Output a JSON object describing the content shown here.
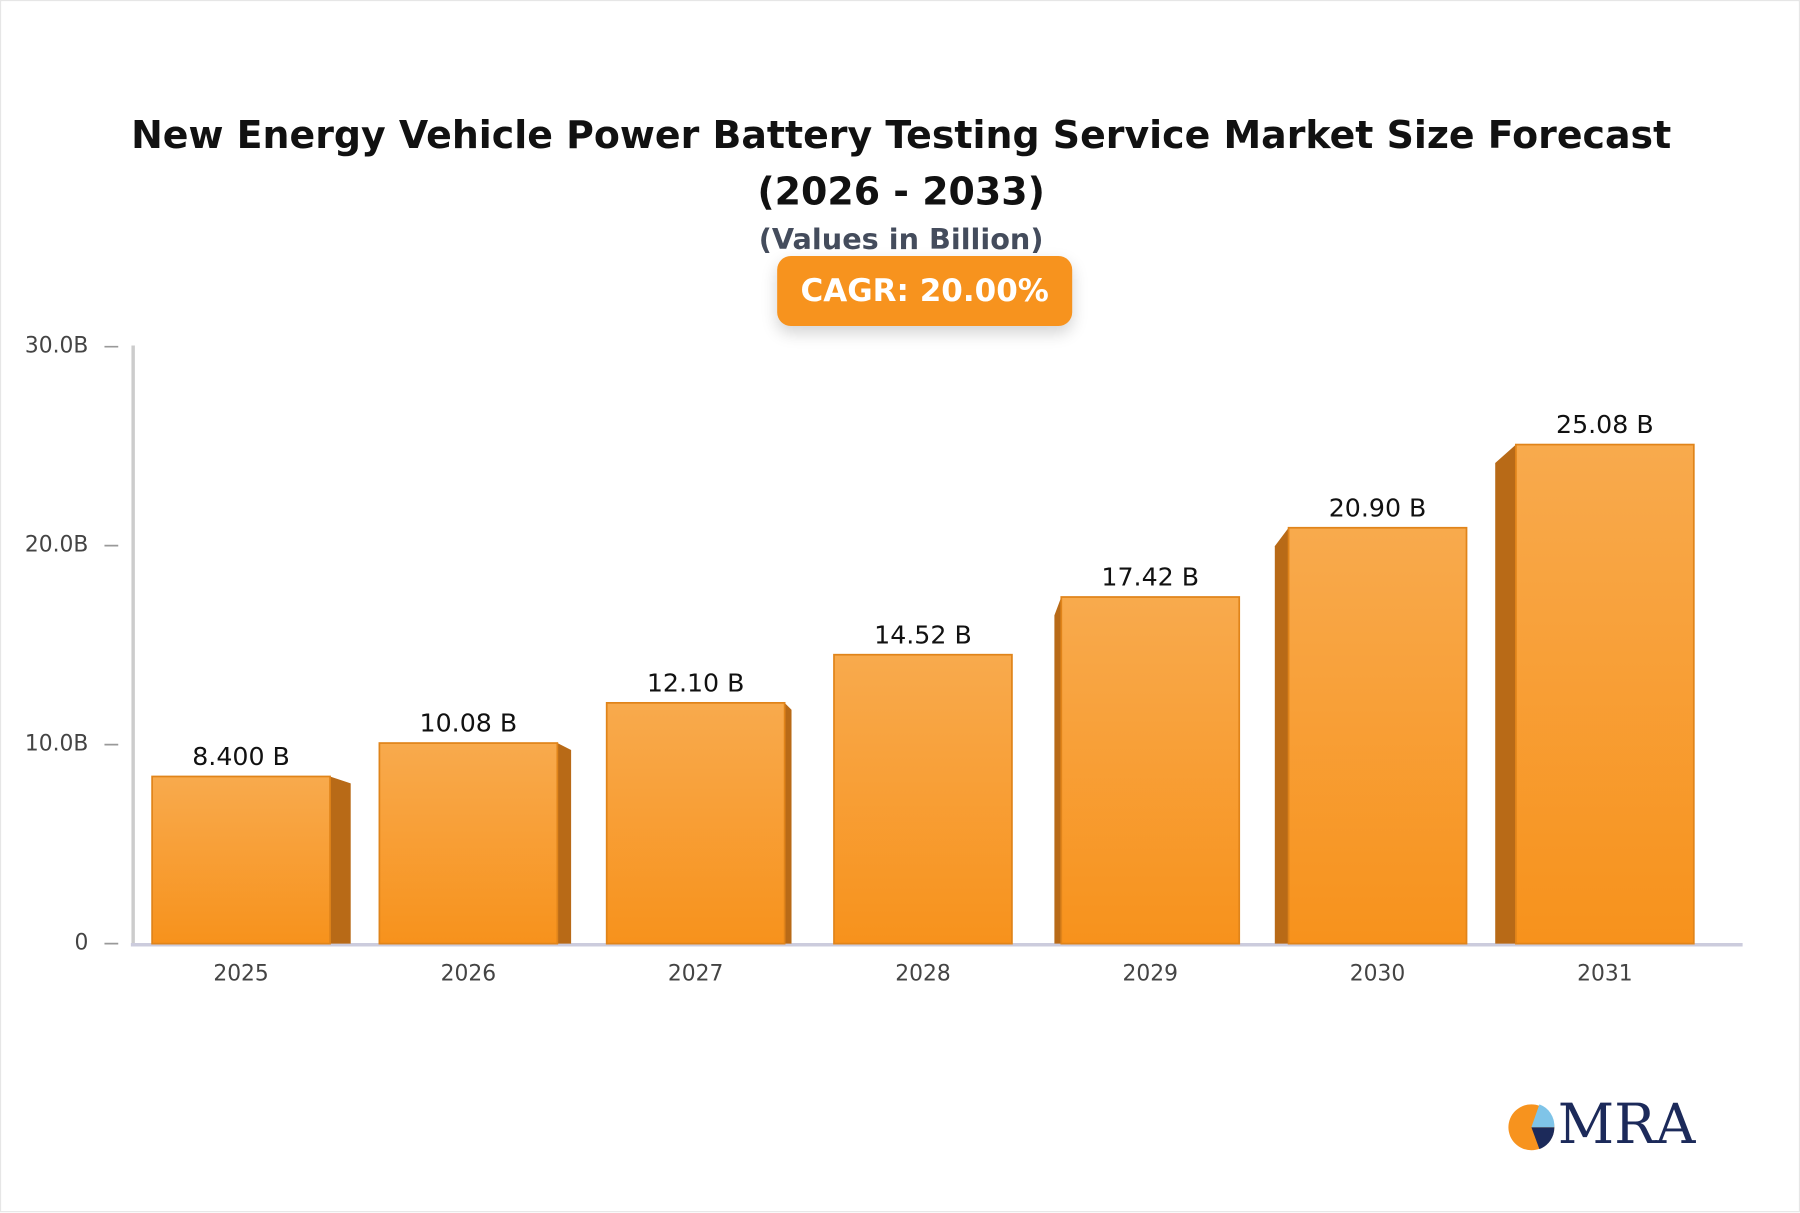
{
  "chart_data": {
    "type": "bar",
    "title": "New Energy Vehicle Power Battery Testing Service Market Size Forecast (2026 - 2033)",
    "subtitle": "(Values in Billion)",
    "badge": "CAGR: 20.00%",
    "categories": [
      "2025",
      "2026",
      "2027",
      "2028",
      "2029",
      "2030",
      "2031"
    ],
    "values": [
      8.4,
      10.08,
      12.1,
      14.52,
      17.42,
      20.9,
      25.08
    ],
    "value_labels": [
      "8.400 B",
      "10.08 B",
      "12.10 B",
      "14.52 B",
      "17.42 B",
      "20.90 B",
      "25.08 B"
    ],
    "color": "#f7931e",
    "ylim": [
      0,
      30
    ],
    "yticks": [
      0,
      {
        "value": 10,
        "label": "10.0B"
      },
      {
        "value": 20,
        "label": "20.0B"
      },
      {
        "value": 30,
        "label": "30.0B"
      }
    ],
    "grid": false
  },
  "logo": "MRA"
}
